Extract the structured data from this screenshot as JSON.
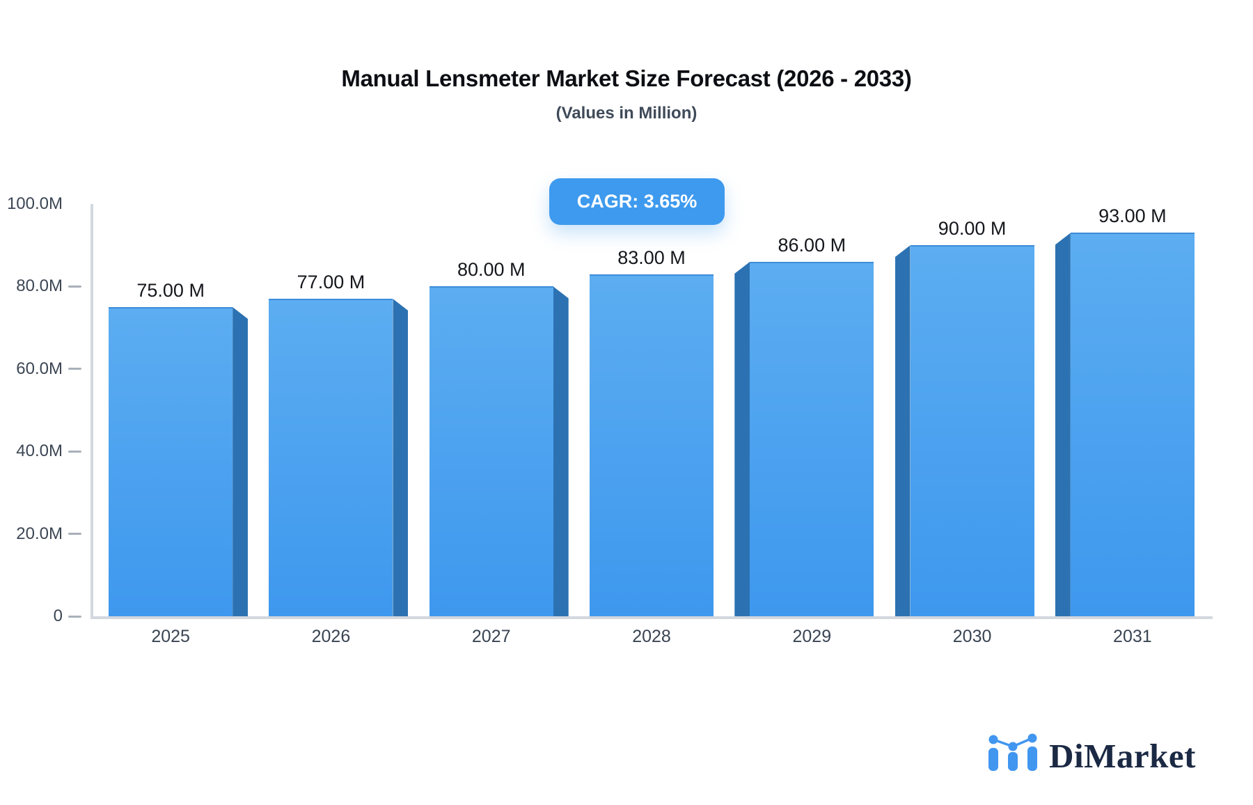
{
  "title": "Manual Lensmeter Market Size Forecast (2026 - 2033)",
  "subtitle": "(Values in Million)",
  "badge": {
    "label": "CAGR: 3.65%"
  },
  "chart_data": {
    "type": "bar",
    "categories": [
      "2025",
      "2026",
      "2027",
      "2028",
      "2029",
      "2030",
      "2031"
    ],
    "values": [
      75,
      77,
      80,
      83,
      86,
      90,
      93
    ],
    "bar_labels": [
      "75.00 M",
      "77.00 M",
      "80.00 M",
      "83.00 M",
      "86.00 M",
      "90.00 M",
      "93.00 M"
    ],
    "title": "Manual Lensmeter Market Size Forecast (2026 - 2033)",
    "subtitle": "(Values in Million)",
    "xlabel": "",
    "ylabel": "",
    "ylim": [
      0,
      100
    ],
    "y_ticks": [
      {
        "label": "100.0M",
        "value": 100,
        "dash": false
      },
      {
        "label": "80.0M",
        "value": 80,
        "dash": true
      },
      {
        "label": "60.0M",
        "value": 60,
        "dash": true
      },
      {
        "label": "40.0M",
        "value": 40,
        "dash": true
      },
      {
        "label": "20.0M",
        "value": 20,
        "dash": true
      },
      {
        "label": "0",
        "value": 0,
        "dash": true
      }
    ],
    "grid": false,
    "legend": false,
    "annotation": "CAGR: 3.65%"
  },
  "colors": {
    "bar_face_top": "#5CADF1",
    "bar_face_bottom": "#3E98EE",
    "bar_side": "#2C72B2",
    "badge_bg": "#3E9AEE",
    "axis_line": "#D3D7DE",
    "tick_dash": "#A9B0BA",
    "logo_blue": "#4196F0",
    "logo_navy": "#1B2944"
  },
  "logo": {
    "name": "DiMarket",
    "icon": "bar-line-chart-icon"
  }
}
